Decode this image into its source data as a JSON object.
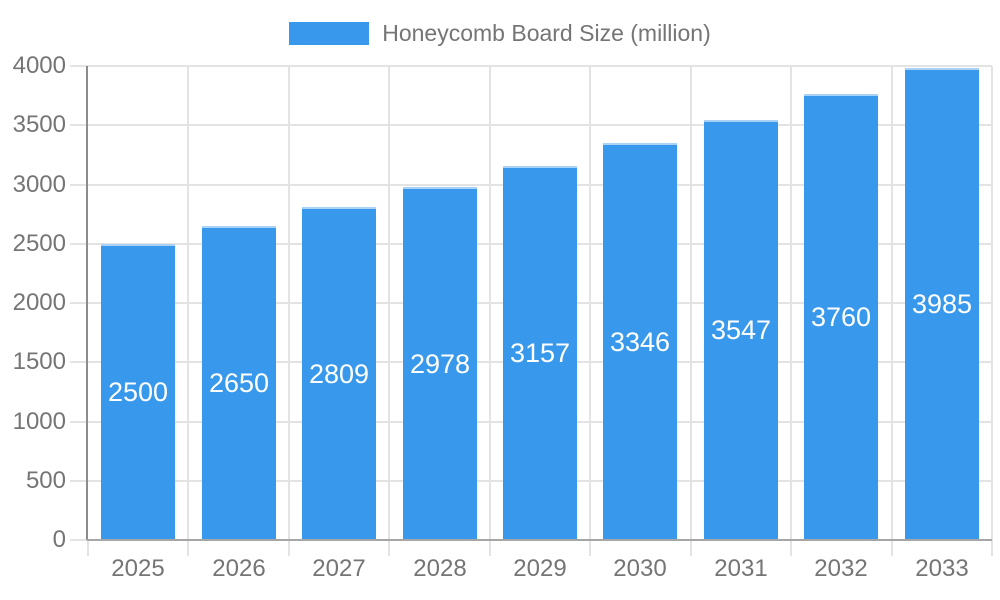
{
  "legend": {
    "label": "Honeycomb Board Size (million)"
  },
  "colors": {
    "bar": "#3899EC",
    "bar_top_edge": "#A9D2F5",
    "bar_label": "#FFFFFF",
    "axis_label": "#757575",
    "grid": "#E3E3E3",
    "y_axis_line": "#8C8C8C",
    "x_axis_line": "#A6A6A6",
    "background": "#FFFFFF"
  },
  "chart_data": {
    "type": "bar",
    "title": "",
    "series_name": "Honeycomb Board Size (million)",
    "categories": [
      "2025",
      "2026",
      "2027",
      "2028",
      "2029",
      "2030",
      "2031",
      "2032",
      "2033"
    ],
    "values": [
      2500,
      2650,
      2809,
      2978,
      3157,
      3346,
      3547,
      3760,
      3985
    ],
    "xlabel": "",
    "ylabel": "",
    "ylim": [
      0,
      4000
    ],
    "y_ticks": [
      0,
      500,
      1000,
      1500,
      2000,
      2500,
      3000,
      3500,
      4000
    ],
    "grid": true,
    "legend_position": "top",
    "value_labels": "inside-center"
  }
}
